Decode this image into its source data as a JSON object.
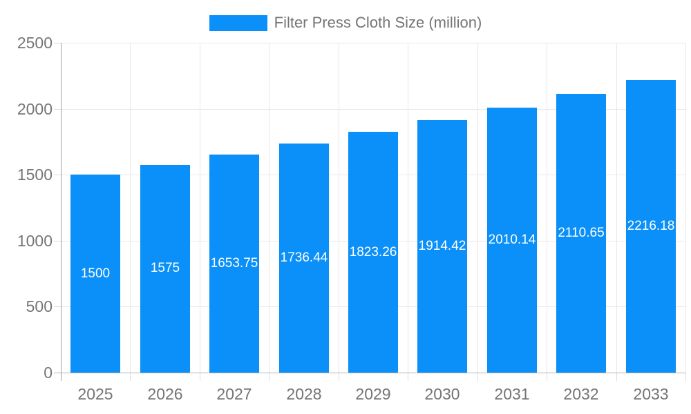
{
  "chart_data": {
    "type": "bar",
    "title": "Filter Press Cloth Size (million)",
    "legend": {
      "label": "Filter Press Cloth Size (million)",
      "position": "top"
    },
    "categories": [
      "2025",
      "2026",
      "2027",
      "2028",
      "2029",
      "2030",
      "2031",
      "2032",
      "2033"
    ],
    "values": [
      1500,
      1575,
      1653.75,
      1736.44,
      1823.26,
      1914.42,
      2010.14,
      2110.65,
      2216.18
    ],
    "value_labels": [
      "1500",
      "1575",
      "1653.75",
      "1736.44",
      "1823.26",
      "1914.42",
      "2010.14",
      "2110.65",
      "2216.18"
    ],
    "xlabel": "",
    "ylabel": "",
    "ylim": [
      0,
      2500
    ],
    "yticks": [
      0,
      500,
      1000,
      1500,
      2000,
      2500
    ],
    "grid": true,
    "legend_position": "top"
  },
  "colors": {
    "bar": "#0a90f8",
    "axis_label": "#757575",
    "value_label": "#ffffff",
    "gridline": "#e8e8e8",
    "tick": "#dcdcdc",
    "x_axis_line": "#b3b3b3",
    "y_axis_line": "#9e9e9e",
    "background": "#ffffff"
  }
}
